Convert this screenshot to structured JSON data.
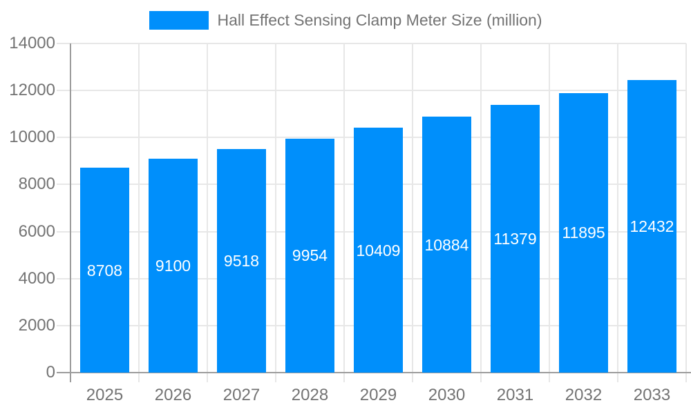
{
  "chart_data": {
    "type": "bar",
    "title": "Hall Effect Sensing Clamp Meter Size (million)",
    "categories": [
      "2025",
      "2026",
      "2027",
      "2028",
      "2029",
      "2030",
      "2031",
      "2032",
      "2033"
    ],
    "series": [
      {
        "name": "Hall Effect Sensing Clamp Meter Size (million)",
        "values": [
          8708,
          9100,
          9518,
          9954,
          10409,
          10884,
          11379,
          11895,
          12432
        ]
      }
    ],
    "data_labels": [
      "8708",
      "9100",
      "9518",
      "9954",
      "10409",
      "10884",
      "11379",
      "11895",
      "12432"
    ],
    "xlabel": "",
    "ylabel": "",
    "ylim": [
      0,
      14000
    ],
    "y_ticks": [
      0,
      2000,
      4000,
      6000,
      8000,
      10000,
      12000,
      14000
    ],
    "y_tick_labels": [
      "0",
      "2000",
      "4000",
      "6000",
      "8000",
      "10000",
      "12000",
      "14000"
    ],
    "grid": true,
    "legend_position": "top",
    "colors": {
      "bar": "#008FFB",
      "value_label": "#ffffff",
      "axis_text": "#737373",
      "grid_line": "#e7e7e7",
      "axis_line": "#9c9c9c",
      "background": "#ffffff"
    }
  }
}
